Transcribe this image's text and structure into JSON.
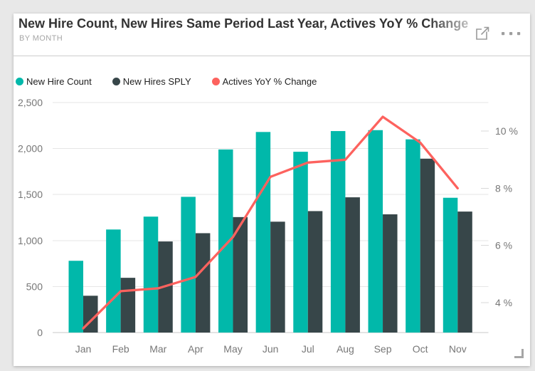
{
  "card": {
    "title": "New Hire Count, New Hires Same Period Last Year, Actives YoY % Change",
    "subtitle": "BY MONTH"
  },
  "header_icons": {
    "focus_mode": "focus-mode-icon",
    "more_options": "ellipsis-icon"
  },
  "legend": [
    {
      "label": "New Hire Count",
      "color": "#01B8AA"
    },
    {
      "label": "New Hires SPLY",
      "color": "#374649"
    },
    {
      "label": "Actives YoY % Change",
      "color": "#FD625E"
    }
  ],
  "colors": {
    "teal": "#01B8AA",
    "dark_slate": "#374649",
    "coral": "#FD625E",
    "axis_text": "#777777",
    "title_text": "#333333",
    "subtitle_text": "#A6A6A6",
    "gridline": "#E6E6E6",
    "baseline": "#C8C8C8",
    "card_background": "#FFFFFF",
    "canvas_background": "#E8E8E8"
  },
  "chart_data": {
    "type": "combo",
    "title": "New Hire Count, New Hires Same Period Last Year, Actives YoY % Change by Month",
    "categories": [
      "Jan",
      "Feb",
      "Mar",
      "Apr",
      "May",
      "Jun",
      "Jul",
      "Aug",
      "Sep",
      "Oct",
      "Nov"
    ],
    "series": [
      {
        "name": "New Hire Count",
        "type": "bar",
        "axis": "left",
        "color": "#01B8AA",
        "values": [
          780,
          1120,
          1260,
          1475,
          1990,
          2180,
          1965,
          2190,
          2200,
          2100,
          1465
        ]
      },
      {
        "name": "New Hires SPLY",
        "type": "bar",
        "axis": "left",
        "color": "#374649",
        "values": [
          400,
          595,
          990,
          1080,
          1255,
          1205,
          1320,
          1470,
          1285,
          1890,
          1315
        ]
      },
      {
        "name": "Actives YoY % Change",
        "type": "line",
        "axis": "right",
        "color": "#FD625E",
        "values": [
          3.1,
          4.4,
          4.5,
          4.9,
          6.3,
          8.4,
          8.9,
          9.0,
          10.5,
          9.6,
          8.0
        ]
      }
    ],
    "y_left_axis": {
      "min": 0,
      "max": 2500,
      "tick_values": [
        0,
        500,
        1000,
        1500,
        2000,
        2500
      ],
      "tick_labels": [
        "0",
        "500",
        "1,000",
        "1,500",
        "2,000",
        "2,500"
      ]
    },
    "y_right_axis": {
      "unit": "%",
      "tick_values": [
        4,
        6,
        8,
        10
      ],
      "tick_labels": [
        "4 %",
        "6 %",
        "8 %",
        "10 %"
      ]
    },
    "grid": true,
    "legend_position": "top-left"
  }
}
